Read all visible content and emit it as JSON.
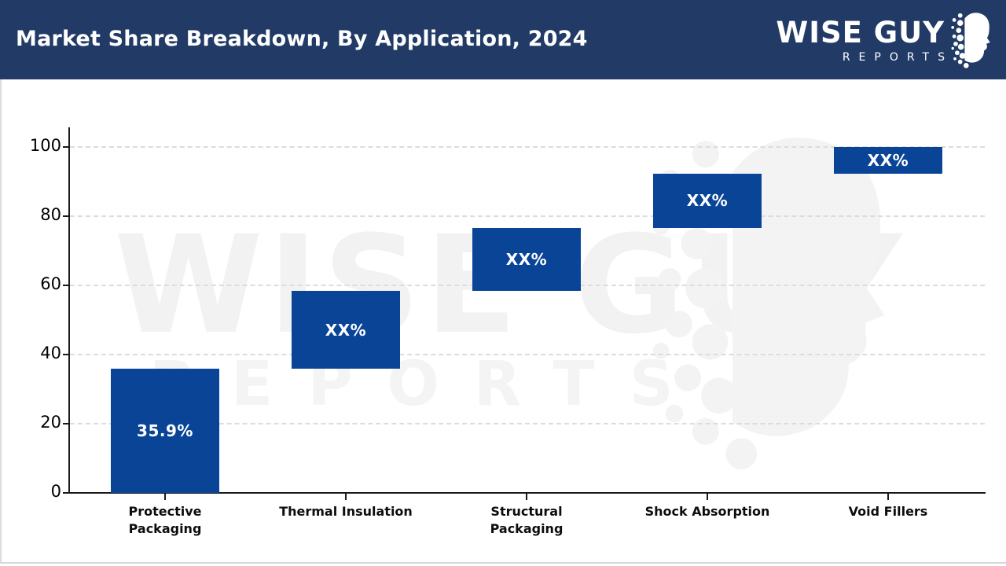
{
  "header": {
    "title": "Market Share Breakdown, By Application, 2024",
    "brand_line1": "WISE GUY",
    "brand_line2": "REPORTS",
    "bg_color": "#223a66"
  },
  "watermark": {
    "line1": "WISE GUY",
    "line2": "REPORTS"
  },
  "chart_data": {
    "type": "bar",
    "subtype": "waterfall",
    "title": "Market Share Breakdown, By Application, 2024",
    "categories": [
      "Protective Packaging",
      "Thermal Insulation",
      "Structural Packaging",
      "Shock Absorption",
      "Void Fillers"
    ],
    "tick_labels": [
      "Protective\nPackaging",
      "Thermal Insulation",
      "Structural\nPackaging",
      "Shock Absorption",
      "Void Fillers"
    ],
    "bars": [
      {
        "category": "Protective Packaging",
        "start": 0,
        "end": 35.9,
        "label": "35.9%"
      },
      {
        "category": "Thermal Insulation",
        "start": 35.9,
        "end": 58.4,
        "label": "XX%"
      },
      {
        "category": "Structural Packaging",
        "start": 58.4,
        "end": 76.6,
        "label": "XX%"
      },
      {
        "category": "Shock Absorption",
        "start": 76.6,
        "end": 92.3,
        "label": "XX%"
      },
      {
        "category": "Void Fillers",
        "start": 92.3,
        "end": 100,
        "label": "XX%"
      }
    ],
    "ylim": [
      0,
      100
    ],
    "yticks": [
      0,
      20,
      40,
      60,
      80,
      100
    ],
    "xlabel": "",
    "ylabel": "",
    "grid": "dashed-horizontal",
    "legend": "none",
    "bar_color": "#0a4497",
    "bar_label_color": "#ffffff"
  }
}
